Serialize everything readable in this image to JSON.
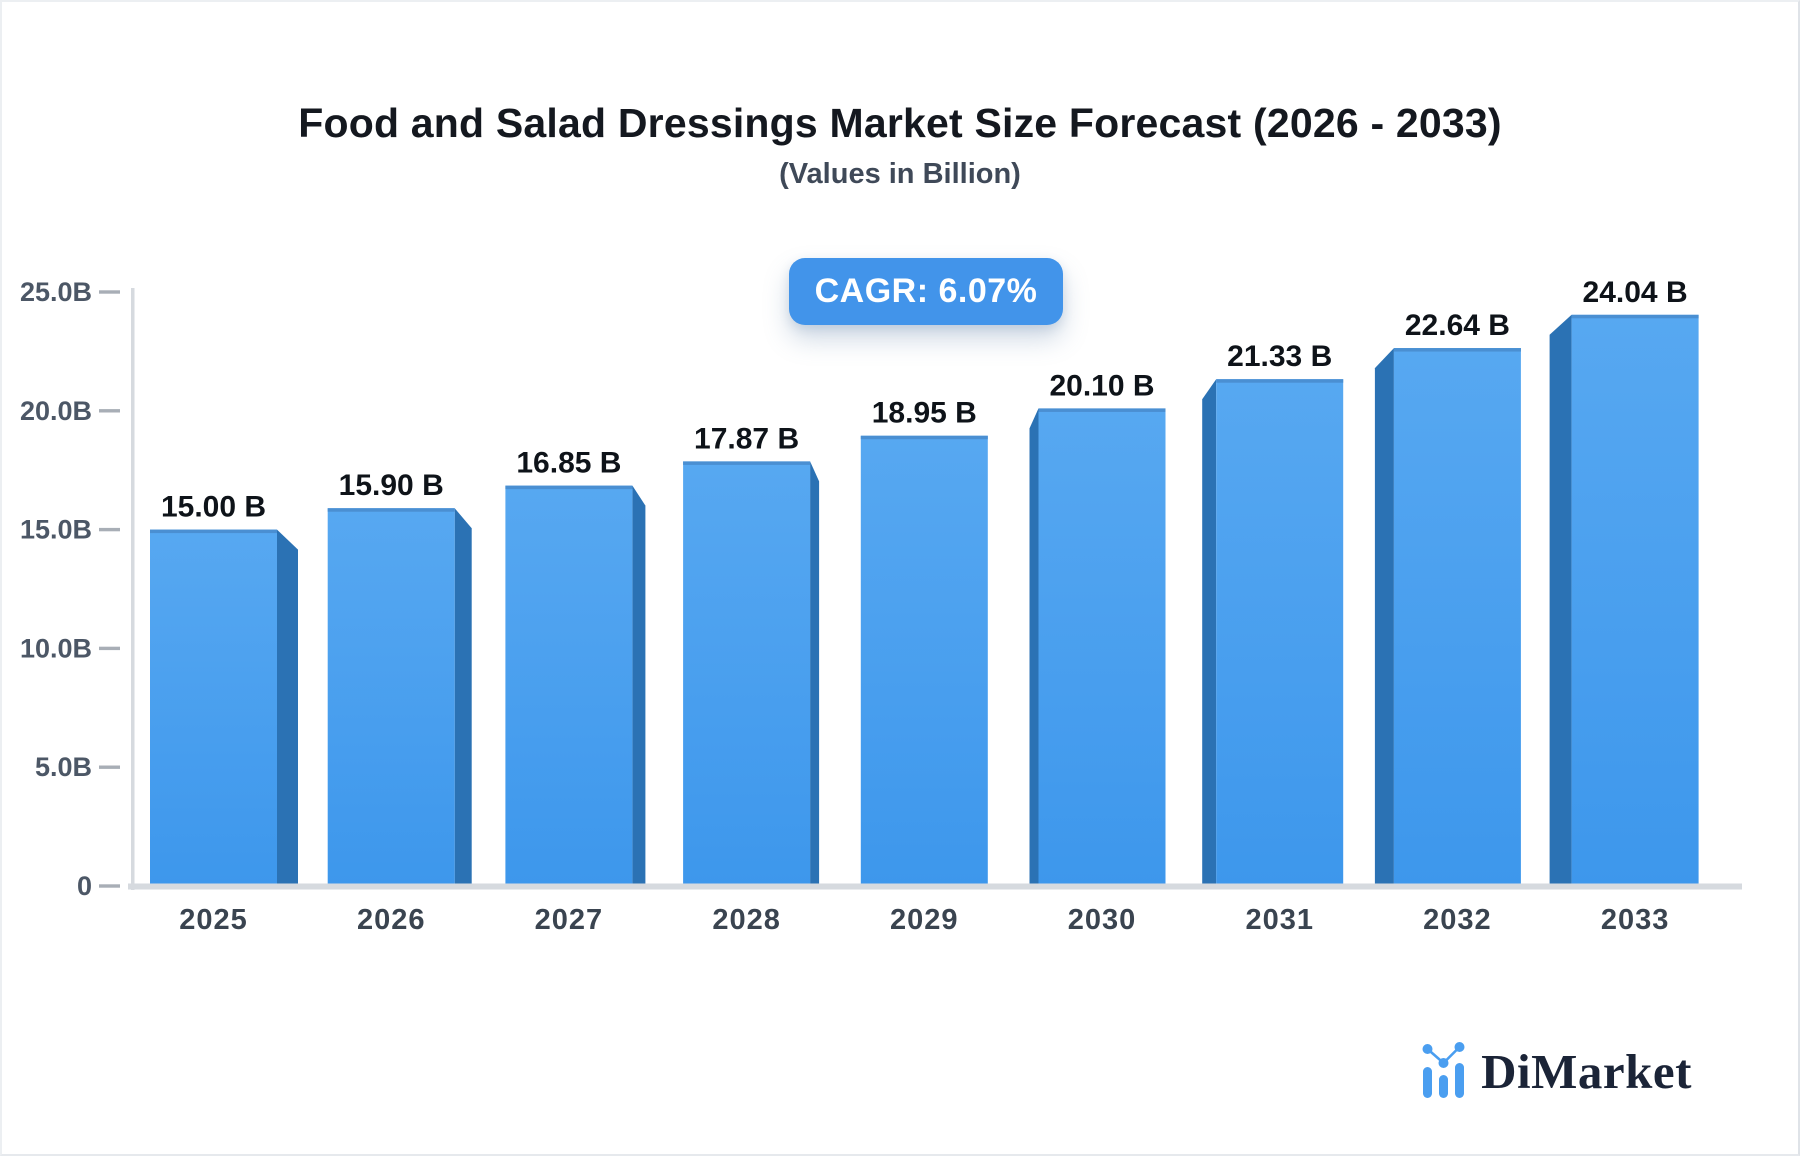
{
  "header": {
    "title": "Food and Salad Dressings Market Size Forecast (2026 - 2033)",
    "subtitle": "(Values in Billion)"
  },
  "badge": {
    "label": "CAGR: 6.07%"
  },
  "footer": {
    "brand": "DiMarket",
    "logo_icon": "mini-bar-chart-icon"
  },
  "colors": {
    "background": "#ffffff",
    "title_text": "#14181f",
    "subtitle_text": "#3f4958",
    "badge_bg": "#4294EA",
    "badge_text": "#ffffff",
    "bar_front_top": "#57A8F1",
    "bar_front_bottom": "#3D97EC",
    "bar_side": "#2B72B4",
    "bar_top_edge": "#4A8FD2",
    "axis_line": "#D6DADF",
    "tick_mark": "#A8AEB6",
    "tick_label": "#4C5766",
    "year_label": "#3A4450",
    "value_label": "#0E1319",
    "logo_blue": "#4A9EF0",
    "logo_text": "#1B2437"
  },
  "chart_data": {
    "type": "bar",
    "title": "Food and Salad Dressings Market Size Forecast (2026 - 2033)",
    "subtitle": "(Values in Billion)",
    "cagr_annotation": "CAGR: 6.07%",
    "categories": [
      "2025",
      "2026",
      "2027",
      "2028",
      "2029",
      "2030",
      "2031",
      "2032",
      "2033"
    ],
    "series": [
      {
        "name": "Market Size (Billion)",
        "values": [
          15.0,
          15.9,
          16.85,
          17.87,
          18.95,
          20.1,
          21.33,
          22.64,
          24.04
        ]
      }
    ],
    "value_labels": [
      "15.00 B",
      "15.90 B",
      "16.85 B",
      "17.87 B",
      "18.95 B",
      "20.10 B",
      "21.33 B",
      "22.64 B",
      "24.04 B"
    ],
    "ylim": [
      0,
      25
    ],
    "yticks": [
      {
        "value": 0,
        "label": "0"
      },
      {
        "value": 5,
        "label": "5.0B"
      },
      {
        "value": 10,
        "label": "10.0B"
      },
      {
        "value": 15,
        "label": "15.0B"
      },
      {
        "value": 20,
        "label": "20.0B"
      },
      {
        "value": 25,
        "label": "25.0B"
      }
    ],
    "xlabel": "",
    "ylabel": "",
    "grid": false,
    "legend_position": "none",
    "bar_style": "3d-perspective-center"
  }
}
